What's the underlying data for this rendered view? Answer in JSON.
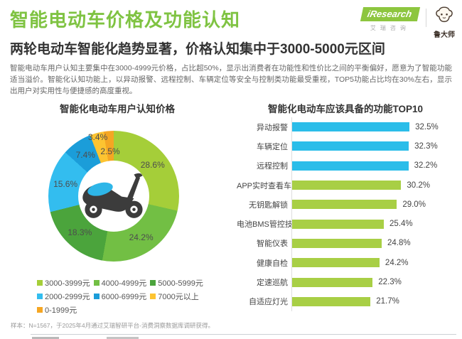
{
  "header": {
    "title": "智能电动车价格及功能认知",
    "subtitle": "两轮电动车智能化趋势显著，价格认知集中于3000-5000元区间",
    "iresearch_logo_text": "iResearch",
    "iresearch_logo_sub": "艾瑞咨询",
    "ludashi_logo_text": "鲁大师",
    "brand_green": "#8dc63f"
  },
  "body_text": "智能电动车用户认知主要集中在3000-4999元价格，占比超50%，显示出消费者在功能性和性价比之间的平衡偏好，愿意为了智能功能适当溢价。智能化认知功能上，以异动报警、远程控制、车辆定位等安全与控制类功能最受重视，TOP5功能占比均在30%左右，显示出用户对实用性与便捷感的高度重视。",
  "chart_data": [
    {
      "type": "pie",
      "subtype": "donut",
      "title": "智能化电动车用户认知价格",
      "labels": [
        "3000-3999元",
        "4000-4999元",
        "5000-5999元",
        "2000-2999元",
        "6000-6999元",
        "7000元以上",
        "0-1999元"
      ],
      "values": [
        28.6,
        24.2,
        18.3,
        15.6,
        7.4,
        3.4,
        2.5
      ],
      "value_labels": [
        "28.6%",
        "24.2%",
        "18.3%",
        "15.6%",
        "7.4%",
        "3.4%",
        "2.5%"
      ],
      "colors": [
        "#a5ce39",
        "#72bf44",
        "#4ba43c",
        "#33bdef",
        "#1b9dd9",
        "#fdc431",
        "#f5a623"
      ],
      "start_angle_deg": 0,
      "direction": "clockwise",
      "center_icon": "scooter-icon",
      "legend_position": "bottom"
    },
    {
      "type": "bar",
      "orientation": "horizontal",
      "title": "智能化电动车应该具备的功能TOP10",
      "categories": [
        "异动报警",
        "车辆定位",
        "远程控制",
        "APP实时查看车况",
        "无钥匙解锁",
        "电池BMS管控技术",
        "智能仪表",
        "健康自检",
        "定速巡航",
        "自适应灯光"
      ],
      "values": [
        32.5,
        32.3,
        32.2,
        30.2,
        29.0,
        25.4,
        24.8,
        24.2,
        22.3,
        21.7
      ],
      "value_labels": [
        "32.5%",
        "32.3%",
        "32.2%",
        "30.2%",
        "29.0%",
        "25.4%",
        "24.8%",
        "24.2%",
        "22.3%",
        "21.7%"
      ],
      "colors": [
        "#2bbde9",
        "#2bbde9",
        "#2bbde9",
        "#a8cf45",
        "#a8cf45",
        "#a8cf45",
        "#a8cf45",
        "#a8cf45",
        "#a8cf45",
        "#a8cf45"
      ],
      "xlim": [
        0,
        35
      ],
      "grid": false,
      "legend_position": "none"
    }
  ],
  "footer": {
    "note": "样本：N=1567，于2025年4月通过艾瑞智研平台-消费洞察数据库调研获得。"
  }
}
